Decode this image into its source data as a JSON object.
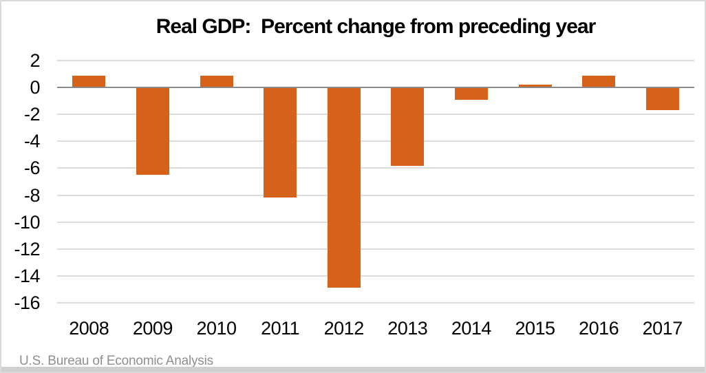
{
  "chart_data": {
    "type": "bar",
    "title": "Real GDP:  Percent change from preceding year",
    "categories": [
      "2008",
      "2009",
      "2010",
      "2011",
      "2012",
      "2013",
      "2014",
      "2015",
      "2016",
      "2017"
    ],
    "values": [
      0.9,
      -6.5,
      0.9,
      -8.2,
      -14.9,
      -5.8,
      -0.9,
      0.2,
      0.9,
      -1.7
    ],
    "xlabel": "",
    "ylabel": "",
    "ylim": [
      -16,
      2
    ],
    "yticks": [
      2,
      0,
      -2,
      -4,
      -6,
      -8,
      -10,
      -12,
      -14,
      -16
    ],
    "grid": true,
    "legend_position": "none",
    "bar_color": "#D6621A",
    "gridline_color": "#DCDCDC",
    "zero_line_color": "#8A8A8A",
    "title_color": "#000000",
    "tick_label_color": "#000000"
  },
  "footer": {
    "source": "U.S. Bureau of Economic Analysis"
  }
}
